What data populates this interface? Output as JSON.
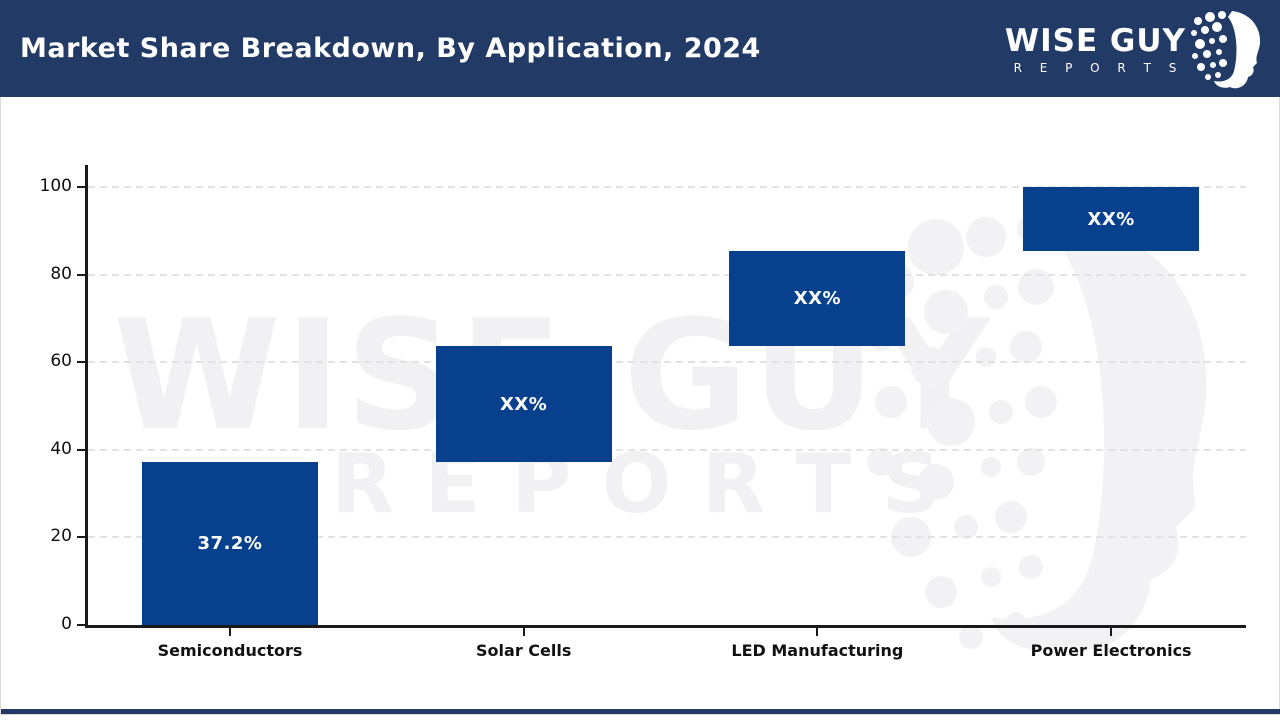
{
  "header": {
    "title": "Market Share Breakdown, By Application, 2024",
    "logo": {
      "name": "WISE GUY",
      "sub": "R E P O R T S"
    }
  },
  "watermark": {
    "line1": "WISE GUY",
    "letters2": [
      "R",
      "E",
      "P",
      "O",
      "R",
      "T",
      "S"
    ]
  },
  "colors": {
    "header_bg": "#213a66",
    "bar": "#07418e",
    "bar_label": "#ffffff",
    "grid": "#e2e2e4",
    "axis": "#1a1a1a",
    "watermark": "#f1f1f3",
    "panel_border": "#d9d9d9"
  },
  "chart_data": {
    "type": "bar",
    "subtype": "floating-segment-waterfall",
    "title": "Market Share Breakdown, By Application, 2024",
    "categories": [
      "Semiconductors",
      "Solar Cells",
      "LED Manufacturing",
      "Power Electronics"
    ],
    "segments": [
      {
        "category": "Semiconductors",
        "start": 0,
        "end": 37.2,
        "label": "37.2%"
      },
      {
        "category": "Solar Cells",
        "start": 37.2,
        "end": 63.7,
        "label": "XX%"
      },
      {
        "category": "LED Manufacturing",
        "start": 63.7,
        "end": 85.3,
        "label": "XX%"
      },
      {
        "category": "Power Electronics",
        "start": 85.3,
        "end": 100,
        "label": "XX%"
      }
    ],
    "yticks": [
      0,
      20,
      40,
      60,
      80,
      100
    ],
    "ylim": [
      0,
      105
    ],
    "xlabel": "",
    "ylabel": "",
    "grid": "horizontal-dashed",
    "legend": "none"
  }
}
